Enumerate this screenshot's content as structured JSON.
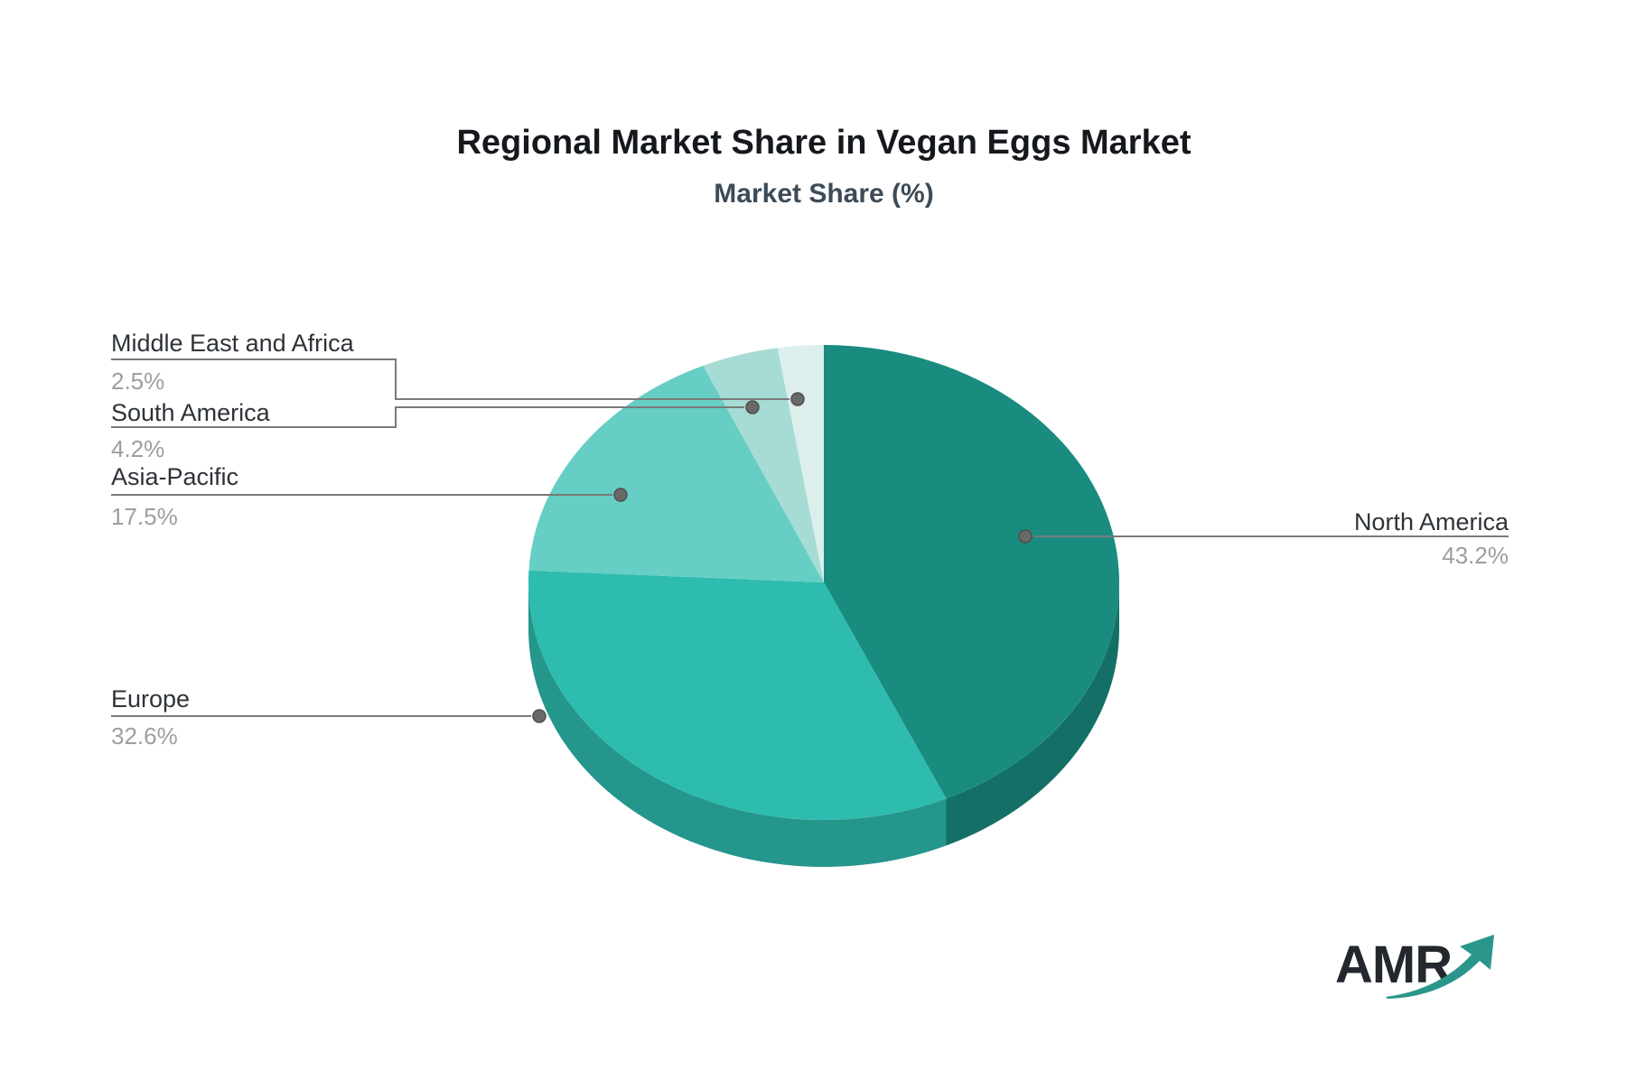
{
  "title": "Regional Market Share in Vegan Eggs Market",
  "subtitle": "Market Share (%)",
  "logo": {
    "text": "AMR"
  },
  "colors": {
    "background": "#ffffff",
    "title_text": "#15181c",
    "subtitle_text": "#3d4b57",
    "label_text": "#2e3338",
    "percent_text": "#9e9e9e",
    "leader_line": "#7a7a7a",
    "logo_text": "#23282e",
    "logo_arrow": "#2b968b"
  },
  "chart_data": {
    "type": "pie",
    "style": "3d",
    "title": "Regional Market Share in Vegan Eggs Market",
    "subtitle": "Market Share (%)",
    "unit": "%",
    "start_angle_deg": 0,
    "direction": "clockwise",
    "legend_position": "callout-labels",
    "slices": [
      {
        "label": "North America",
        "value": 43.2,
        "display": "43.2%",
        "color": "#198C7F"
      },
      {
        "label": "Europe",
        "value": 32.6,
        "display": "32.6%",
        "color": "#2DBCAE"
      },
      {
        "label": "Asia-Pacific",
        "value": 17.5,
        "display": "17.5%",
        "color": "#66CEC4"
      },
      {
        "label": "South America",
        "value": 4.2,
        "display": "4.2%",
        "color": "#A7DCD5"
      },
      {
        "label": "Middle East and Africa",
        "value": 2.5,
        "display": "2.5%",
        "color": "#DCEFEC"
      }
    ]
  }
}
